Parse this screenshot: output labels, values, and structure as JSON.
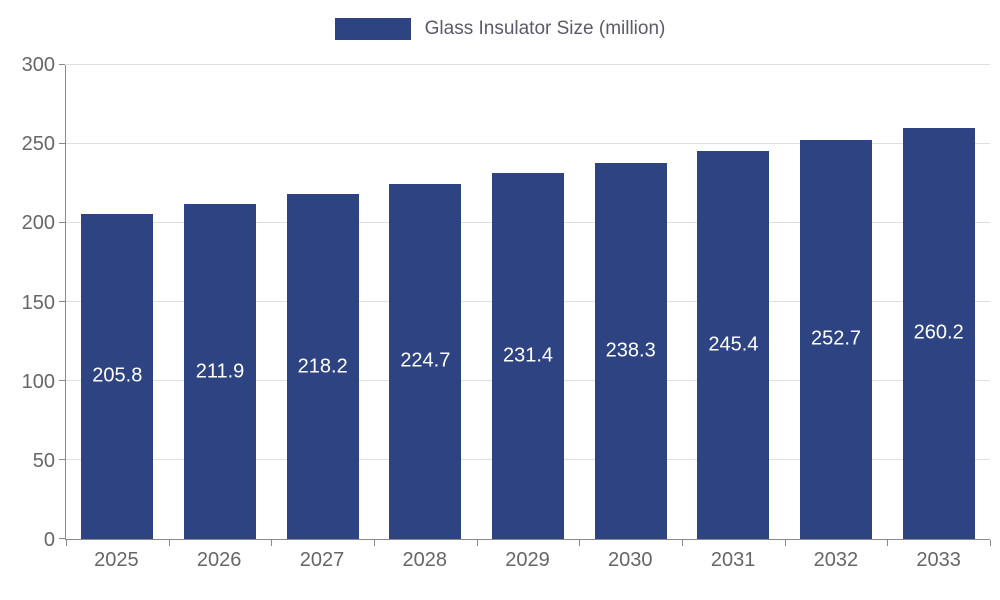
{
  "legend": {
    "label": "Glass Insulator Size (million)"
  },
  "chart_data": {
    "type": "bar",
    "title": "Glass Insulator Size (million)",
    "series_name": "Glass Insulator Size (million)",
    "categories": [
      "2025",
      "2026",
      "2027",
      "2028",
      "2029",
      "2030",
      "2031",
      "2032",
      "2033"
    ],
    "values": [
      205.8,
      211.9,
      218.2,
      224.7,
      231.4,
      238.3,
      245.4,
      252.7,
      260.2
    ],
    "xlabel": "",
    "ylabel": "",
    "ylim": [
      0,
      300
    ],
    "yticks": [
      0,
      50,
      100,
      150,
      200,
      250,
      300
    ],
    "grid": true,
    "legend_position": "top",
    "bar_color": "#2e4482",
    "value_label_color": "#ffffff"
  }
}
